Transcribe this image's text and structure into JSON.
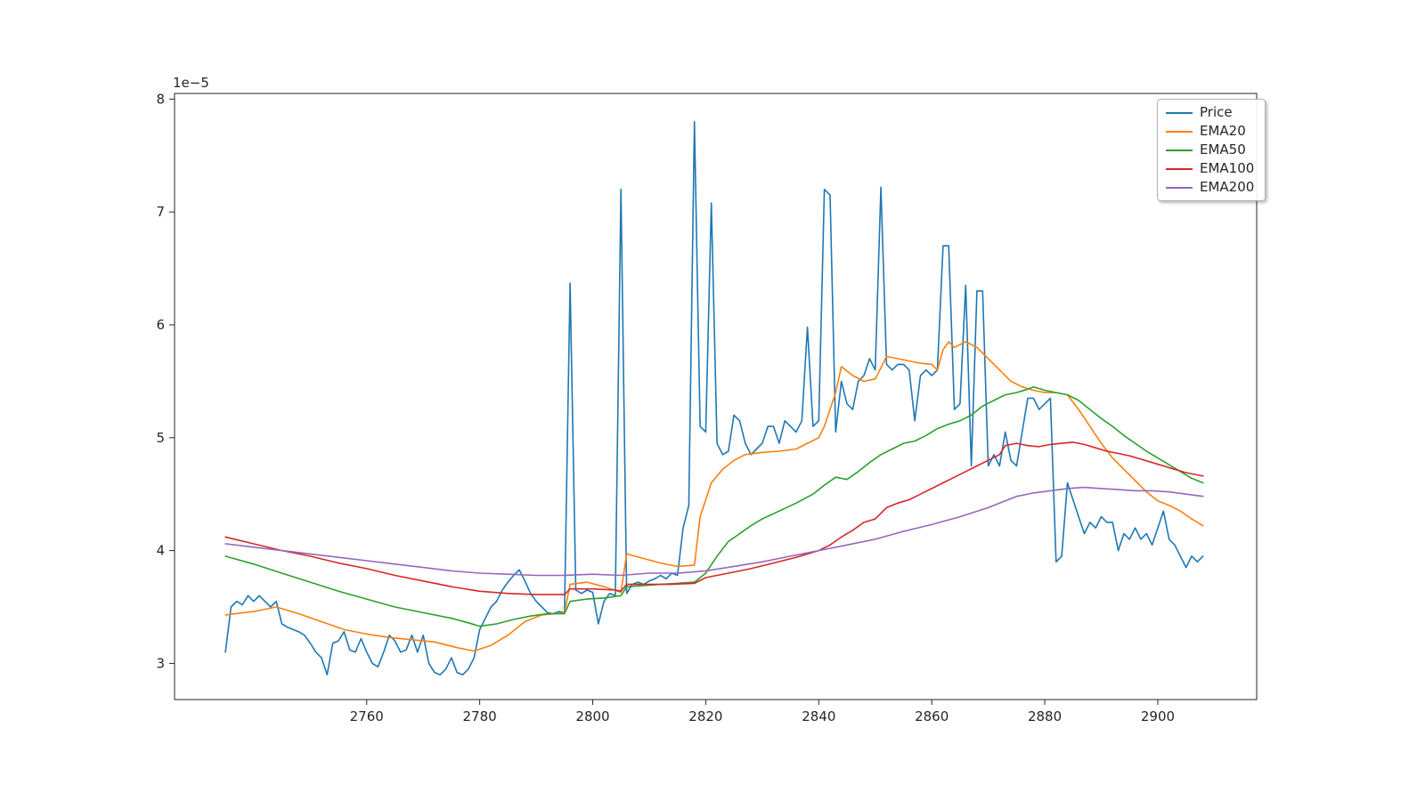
{
  "page": {
    "background": "#ffffff"
  },
  "chart_data": {
    "type": "line",
    "title": "",
    "xlabel": "",
    "ylabel": "",
    "y_offset_text": "1e−5",
    "xlim": [
      2726,
      2917.5
    ],
    "ylim": [
      2.68,
      8.05
    ],
    "xticks": [
      2760,
      2780,
      2800,
      2820,
      2840,
      2860,
      2880,
      2900
    ],
    "yticks": [
      3,
      4,
      5,
      6,
      7,
      8
    ],
    "grid": false,
    "legend": {
      "position": "upper right"
    },
    "series": [
      {
        "name": "Price",
        "color": "#1f77b4",
        "x_start": 2735,
        "x_step": 1,
        "values": [
          3.1,
          3.5,
          3.55,
          3.52,
          3.6,
          3.55,
          3.6,
          3.55,
          3.5,
          3.55,
          3.35,
          3.32,
          3.3,
          3.28,
          3.25,
          3.18,
          3.1,
          3.05,
          2.9,
          3.18,
          3.2,
          3.28,
          3.12,
          3.1,
          3.22,
          3.1,
          3.0,
          2.97,
          3.1,
          3.25,
          3.2,
          3.1,
          3.12,
          3.25,
          3.1,
          3.25,
          3.0,
          2.92,
          2.9,
          2.95,
          3.05,
          2.92,
          2.9,
          2.95,
          3.05,
          3.3,
          3.4,
          3.5,
          3.55,
          3.65,
          3.72,
          3.78,
          3.83,
          3.73,
          3.62,
          3.55,
          3.5,
          3.45,
          3.44,
          3.46,
          3.45,
          6.37,
          3.65,
          3.62,
          3.65,
          3.63,
          3.35,
          3.55,
          3.62,
          3.6,
          7.2,
          3.62,
          3.7,
          3.72,
          3.7,
          3.73,
          3.75,
          3.78,
          3.75,
          3.8,
          3.78,
          4.2,
          4.4,
          7.8,
          5.1,
          5.05,
          7.08,
          4.95,
          4.85,
          4.88,
          5.2,
          5.15,
          4.95,
          4.85,
          4.9,
          4.95,
          5.1,
          5.1,
          4.95,
          5.15,
          5.1,
          5.05,
          5.15,
          5.98,
          5.1,
          5.15,
          7.2,
          7.15,
          5.05,
          5.5,
          5.3,
          5.25,
          5.5,
          5.55,
          5.7,
          5.6,
          7.22,
          5.65,
          5.6,
          5.65,
          5.65,
          5.6,
          5.15,
          5.55,
          5.6,
          5.55,
          5.6,
          6.7,
          6.7,
          5.25,
          5.3,
          6.35,
          4.75,
          6.3,
          6.3,
          4.75,
          4.85,
          4.75,
          5.05,
          4.8,
          4.75,
          5.05,
          5.35,
          5.35,
          5.25,
          5.3,
          5.35,
          3.9,
          3.95,
          4.6,
          4.45,
          4.3,
          4.15,
          4.25,
          4.2,
          4.3,
          4.25,
          4.25,
          4.0,
          4.15,
          4.1,
          4.2,
          4.1,
          4.15,
          4.05,
          4.2,
          4.35,
          4.1,
          4.05,
          3.95,
          3.85,
          3.95,
          3.9,
          3.95
        ]
      },
      {
        "name": "EMA20",
        "color": "#ff7f0e",
        "points": [
          [
            2735,
            3.43
          ],
          [
            2740,
            3.46
          ],
          [
            2744,
            3.5
          ],
          [
            2748,
            3.44
          ],
          [
            2752,
            3.37
          ],
          [
            2756,
            3.3
          ],
          [
            2760,
            3.26
          ],
          [
            2764,
            3.23
          ],
          [
            2768,
            3.21
          ],
          [
            2772,
            3.19
          ],
          [
            2776,
            3.14
          ],
          [
            2779,
            3.11
          ],
          [
            2782,
            3.16
          ],
          [
            2785,
            3.25
          ],
          [
            2788,
            3.37
          ],
          [
            2791,
            3.43
          ],
          [
            2795,
            3.45
          ],
          [
            2796,
            3.7
          ],
          [
            2799,
            3.72
          ],
          [
            2802,
            3.68
          ],
          [
            2805,
            3.63
          ],
          [
            2806,
            3.97
          ],
          [
            2809,
            3.93
          ],
          [
            2812,
            3.89
          ],
          [
            2815,
            3.86
          ],
          [
            2818,
            3.87
          ],
          [
            2819,
            4.3
          ],
          [
            2821,
            4.6
          ],
          [
            2823,
            4.72
          ],
          [
            2825,
            4.8
          ],
          [
            2827,
            4.85
          ],
          [
            2830,
            4.87
          ],
          [
            2833,
            4.88
          ],
          [
            2836,
            4.9
          ],
          [
            2838,
            4.95
          ],
          [
            2840,
            5.0
          ],
          [
            2841,
            5.1
          ],
          [
            2843,
            5.4
          ],
          [
            2844,
            5.63
          ],
          [
            2846,
            5.55
          ],
          [
            2848,
            5.5
          ],
          [
            2850,
            5.52
          ],
          [
            2851,
            5.62
          ],
          [
            2852,
            5.72
          ],
          [
            2854,
            5.7
          ],
          [
            2856,
            5.68
          ],
          [
            2858,
            5.66
          ],
          [
            2860,
            5.65
          ],
          [
            2861,
            5.6
          ],
          [
            2862,
            5.78
          ],
          [
            2863,
            5.85
          ],
          [
            2864,
            5.8
          ],
          [
            2866,
            5.85
          ],
          [
            2868,
            5.8
          ],
          [
            2870,
            5.7
          ],
          [
            2872,
            5.6
          ],
          [
            2874,
            5.5
          ],
          [
            2876,
            5.45
          ],
          [
            2878,
            5.42
          ],
          [
            2880,
            5.4
          ],
          [
            2882,
            5.4
          ],
          [
            2884,
            5.38
          ],
          [
            2886,
            5.25
          ],
          [
            2888,
            5.1
          ],
          [
            2890,
            4.95
          ],
          [
            2892,
            4.82
          ],
          [
            2894,
            4.72
          ],
          [
            2896,
            4.62
          ],
          [
            2898,
            4.52
          ],
          [
            2900,
            4.44
          ],
          [
            2902,
            4.4
          ],
          [
            2904,
            4.35
          ],
          [
            2906,
            4.28
          ],
          [
            2908,
            4.22
          ]
        ]
      },
      {
        "name": "EMA50",
        "color": "#2ca02c",
        "points": [
          [
            2735,
            3.95
          ],
          [
            2740,
            3.88
          ],
          [
            2745,
            3.8
          ],
          [
            2750,
            3.72
          ],
          [
            2755,
            3.64
          ],
          [
            2760,
            3.57
          ],
          [
            2765,
            3.5
          ],
          [
            2770,
            3.45
          ],
          [
            2775,
            3.4
          ],
          [
            2778,
            3.36
          ],
          [
            2780,
            3.33
          ],
          [
            2783,
            3.35
          ],
          [
            2786,
            3.39
          ],
          [
            2789,
            3.42
          ],
          [
            2792,
            3.44
          ],
          [
            2795,
            3.44
          ],
          [
            2796,
            3.55
          ],
          [
            2799,
            3.57
          ],
          [
            2802,
            3.58
          ],
          [
            2805,
            3.6
          ],
          [
            2806,
            3.68
          ],
          [
            2809,
            3.69
          ],
          [
            2812,
            3.7
          ],
          [
            2815,
            3.71
          ],
          [
            2818,
            3.72
          ],
          [
            2820,
            3.8
          ],
          [
            2822,
            3.95
          ],
          [
            2824,
            4.08
          ],
          [
            2826,
            4.15
          ],
          [
            2828,
            4.22
          ],
          [
            2830,
            4.28
          ],
          [
            2833,
            4.35
          ],
          [
            2836,
            4.42
          ],
          [
            2839,
            4.5
          ],
          [
            2841,
            4.58
          ],
          [
            2843,
            4.65
          ],
          [
            2845,
            4.63
          ],
          [
            2847,
            4.7
          ],
          [
            2849,
            4.78
          ],
          [
            2851,
            4.85
          ],
          [
            2853,
            4.9
          ],
          [
            2855,
            4.95
          ],
          [
            2857,
            4.97
          ],
          [
            2859,
            5.02
          ],
          [
            2861,
            5.08
          ],
          [
            2863,
            5.12
          ],
          [
            2865,
            5.15
          ],
          [
            2867,
            5.2
          ],
          [
            2869,
            5.28
          ],
          [
            2871,
            5.33
          ],
          [
            2873,
            5.38
          ],
          [
            2875,
            5.4
          ],
          [
            2877,
            5.43
          ],
          [
            2878,
            5.45
          ],
          [
            2880,
            5.42
          ],
          [
            2882,
            5.4
          ],
          [
            2884,
            5.38
          ],
          [
            2886,
            5.33
          ],
          [
            2888,
            5.25
          ],
          [
            2890,
            5.17
          ],
          [
            2892,
            5.1
          ],
          [
            2894,
            5.02
          ],
          [
            2896,
            4.95
          ],
          [
            2898,
            4.88
          ],
          [
            2900,
            4.82
          ],
          [
            2902,
            4.76
          ],
          [
            2904,
            4.7
          ],
          [
            2906,
            4.64
          ],
          [
            2908,
            4.6
          ]
        ]
      },
      {
        "name": "EMA100",
        "color": "#d62728",
        "points": [
          [
            2735,
            4.12
          ],
          [
            2740,
            4.06
          ],
          [
            2745,
            4.0
          ],
          [
            2750,
            3.95
          ],
          [
            2755,
            3.89
          ],
          [
            2760,
            3.84
          ],
          [
            2765,
            3.78
          ],
          [
            2770,
            3.73
          ],
          [
            2775,
            3.68
          ],
          [
            2780,
            3.64
          ],
          [
            2785,
            3.62
          ],
          [
            2790,
            3.61
          ],
          [
            2795,
            3.61
          ],
          [
            2796,
            3.66
          ],
          [
            2800,
            3.66
          ],
          [
            2804,
            3.65
          ],
          [
            2805,
            3.64
          ],
          [
            2806,
            3.7
          ],
          [
            2810,
            3.7
          ],
          [
            2814,
            3.7
          ],
          [
            2818,
            3.71
          ],
          [
            2820,
            3.76
          ],
          [
            2824,
            3.8
          ],
          [
            2828,
            3.84
          ],
          [
            2832,
            3.89
          ],
          [
            2836,
            3.94
          ],
          [
            2840,
            4.0
          ],
          [
            2842,
            4.05
          ],
          [
            2844,
            4.12
          ],
          [
            2846,
            4.18
          ],
          [
            2848,
            4.25
          ],
          [
            2850,
            4.28
          ],
          [
            2852,
            4.38
          ],
          [
            2854,
            4.42
          ],
          [
            2856,
            4.45
          ],
          [
            2858,
            4.5
          ],
          [
            2860,
            4.55
          ],
          [
            2862,
            4.6
          ],
          [
            2864,
            4.65
          ],
          [
            2866,
            4.7
          ],
          [
            2868,
            4.75
          ],
          [
            2870,
            4.8
          ],
          [
            2872,
            4.85
          ],
          [
            2873,
            4.93
          ],
          [
            2875,
            4.95
          ],
          [
            2877,
            4.93
          ],
          [
            2879,
            4.92
          ],
          [
            2881,
            4.94
          ],
          [
            2883,
            4.95
          ],
          [
            2885,
            4.96
          ],
          [
            2887,
            4.94
          ],
          [
            2889,
            4.91
          ],
          [
            2891,
            4.88
          ],
          [
            2893,
            4.86
          ],
          [
            2895,
            4.84
          ],
          [
            2897,
            4.81
          ],
          [
            2899,
            4.78
          ],
          [
            2901,
            4.75
          ],
          [
            2903,
            4.72
          ],
          [
            2905,
            4.69
          ],
          [
            2907,
            4.67
          ],
          [
            2908,
            4.66
          ]
        ]
      },
      {
        "name": "EMA200",
        "color": "#9467bd",
        "points": [
          [
            2735,
            4.06
          ],
          [
            2740,
            4.03
          ],
          [
            2745,
            4.0
          ],
          [
            2750,
            3.97
          ],
          [
            2755,
            3.94
          ],
          [
            2760,
            3.91
          ],
          [
            2765,
            3.88
          ],
          [
            2770,
            3.85
          ],
          [
            2775,
            3.82
          ],
          [
            2780,
            3.8
          ],
          [
            2785,
            3.79
          ],
          [
            2790,
            3.78
          ],
          [
            2795,
            3.78
          ],
          [
            2800,
            3.79
          ],
          [
            2805,
            3.78
          ],
          [
            2810,
            3.8
          ],
          [
            2815,
            3.8
          ],
          [
            2820,
            3.82
          ],
          [
            2825,
            3.86
          ],
          [
            2830,
            3.9
          ],
          [
            2835,
            3.95
          ],
          [
            2840,
            4.0
          ],
          [
            2845,
            4.05
          ],
          [
            2850,
            4.1
          ],
          [
            2855,
            4.17
          ],
          [
            2860,
            4.23
          ],
          [
            2865,
            4.3
          ],
          [
            2870,
            4.38
          ],
          [
            2872,
            4.42
          ],
          [
            2875,
            4.48
          ],
          [
            2878,
            4.51
          ],
          [
            2881,
            4.53
          ],
          [
            2884,
            4.55
          ],
          [
            2887,
            4.56
          ],
          [
            2890,
            4.55
          ],
          [
            2893,
            4.54
          ],
          [
            2896,
            4.53
          ],
          [
            2899,
            4.53
          ],
          [
            2902,
            4.52
          ],
          [
            2905,
            4.5
          ],
          [
            2908,
            4.48
          ]
        ]
      }
    ]
  }
}
